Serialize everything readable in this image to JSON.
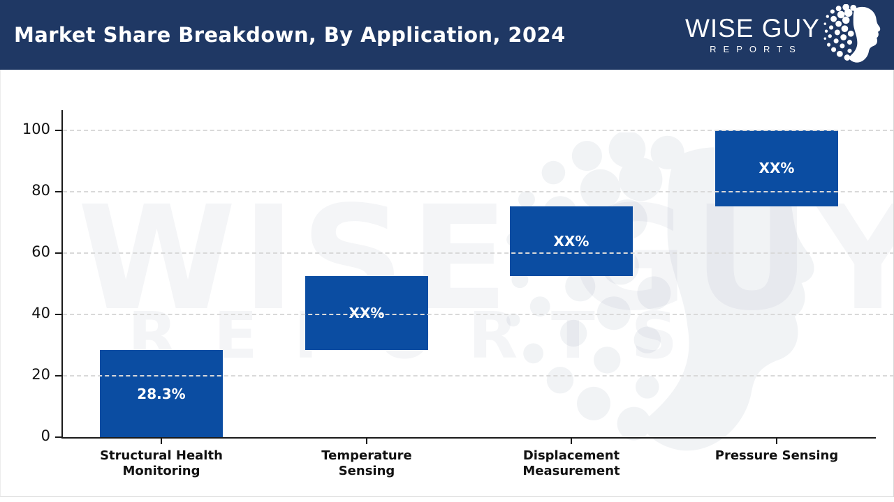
{
  "header": {
    "title": "Market Share Breakdown, By Application, 2024",
    "background": "#1f3864",
    "logo": {
      "line1": "WISE GUY",
      "line2": "REPORTS"
    }
  },
  "watermark": {
    "line1": "WISE GUY",
    "line2": "REPORTS"
  },
  "chart_data": {
    "type": "bar",
    "subtype": "waterfall",
    "title": "Market Share Breakdown, By Application, 2024",
    "categories": [
      "Structural Health Monitoring",
      "Temperature Sensing",
      "Displacement Measurement",
      "Pressure Sensing"
    ],
    "category_lines": [
      [
        "Structural Health",
        "Monitoring"
      ],
      [
        "Temperature",
        "Sensing"
      ],
      [
        "Displacement",
        "Measurement"
      ],
      [
        "Pressure Sensing"
      ]
    ],
    "segments": [
      {
        "category": "Structural Health Monitoring",
        "start": 0,
        "end": 28.3,
        "label": "28.3%"
      },
      {
        "category": "Temperature Sensing",
        "start": 28.3,
        "end": 52.5,
        "label": "XX%"
      },
      {
        "category": "Displacement Measurement",
        "start": 52.5,
        "end": 75.2,
        "label": "XX%"
      },
      {
        "category": "Pressure Sensing",
        "start": 75.2,
        "end": 100,
        "label": "XX%"
      }
    ],
    "ylim": [
      0,
      105
    ],
    "yticks": [
      0,
      20,
      40,
      60,
      80,
      100
    ],
    "xlabel": "",
    "ylabel": "",
    "legend": "none",
    "grid": "horizontal-dashed",
    "bar_color": "#0b4da2",
    "bar_label_color": "#ffffff",
    "axis_color": "#1a1a1a",
    "grid_color": "#d9d9d9",
    "tick_label_color": "#111111"
  }
}
